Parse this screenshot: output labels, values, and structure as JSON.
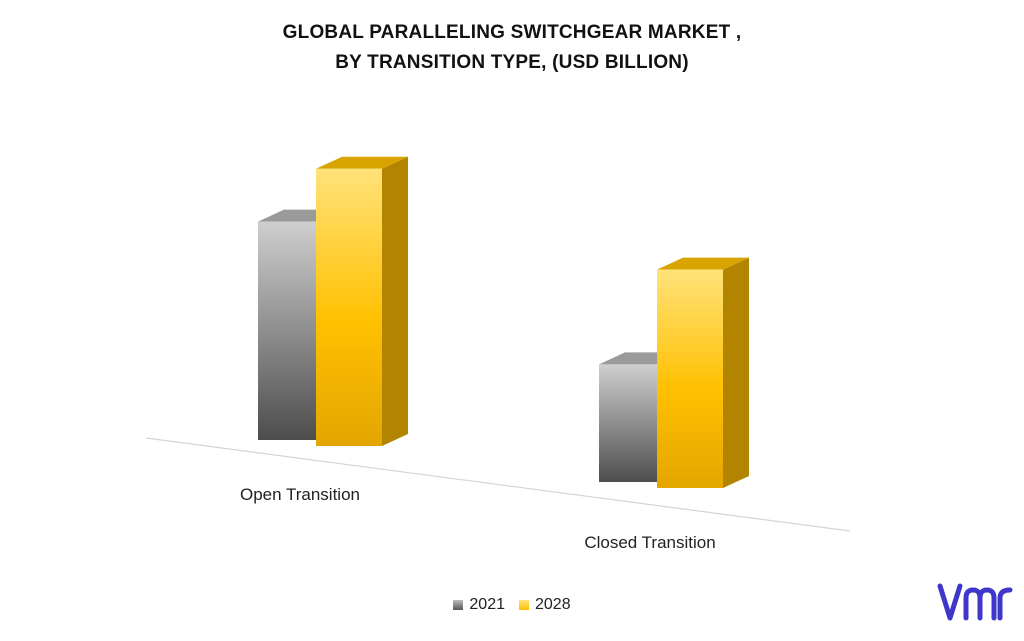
{
  "colors": {
    "series_2021": "#7f7f7f",
    "series_2028": "#ffc000",
    "logo": "#3f37c9"
  },
  "chart_data": {
    "type": "bar",
    "title_lines": [
      "GLOBAL PARALLELING SWITCHGEAR MARKET ,",
      "BY TRANSITION TYPE, (USD BILLION)"
    ],
    "categories": [
      "Open Transition",
      "Closed Transition"
    ],
    "series": [
      {
        "name": "2021",
        "values": [
          2.6,
          1.4
        ]
      },
      {
        "name": "2028",
        "values": [
          3.3,
          2.6
        ]
      }
    ],
    "legend_position": "bottom",
    "grid": false,
    "value_axis_shown": false,
    "style": "3d-perspective"
  },
  "logo": {
    "icon": "vmr-logo-icon"
  }
}
